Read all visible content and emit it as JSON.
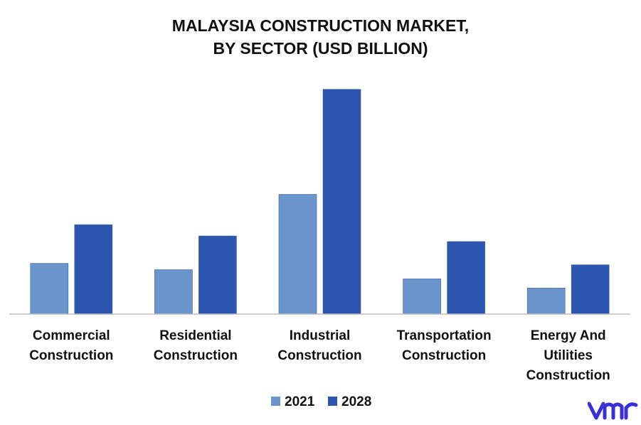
{
  "chart_data": {
    "type": "bar",
    "title": [
      "MALAYSIA CONSTRUCTION MARKET,",
      "BY SECTOR (USD BILLION)"
    ],
    "categories": [
      [
        "Commercial",
        "Construction"
      ],
      [
        "Residential",
        "Construction"
      ],
      [
        "Industrial",
        "Construction"
      ],
      [
        "Transportation",
        "Construction"
      ],
      [
        "Energy And",
        "Utilities",
        "Construction"
      ]
    ],
    "series": [
      {
        "name": "2021",
        "color": "#6a96cd",
        "values": [
          7.2,
          6.3,
          17.0,
          5.0,
          3.7
        ]
      },
      {
        "name": "2028",
        "color": "#2d56b0",
        "values": [
          12.7,
          11.1,
          31.9,
          10.3,
          7.0
        ]
      }
    ],
    "ylim": [
      0,
      35
    ],
    "grid": false,
    "legend_position": "bottom"
  },
  "logo": {
    "name": "vmr-logo",
    "color": "#3b2fd6"
  }
}
